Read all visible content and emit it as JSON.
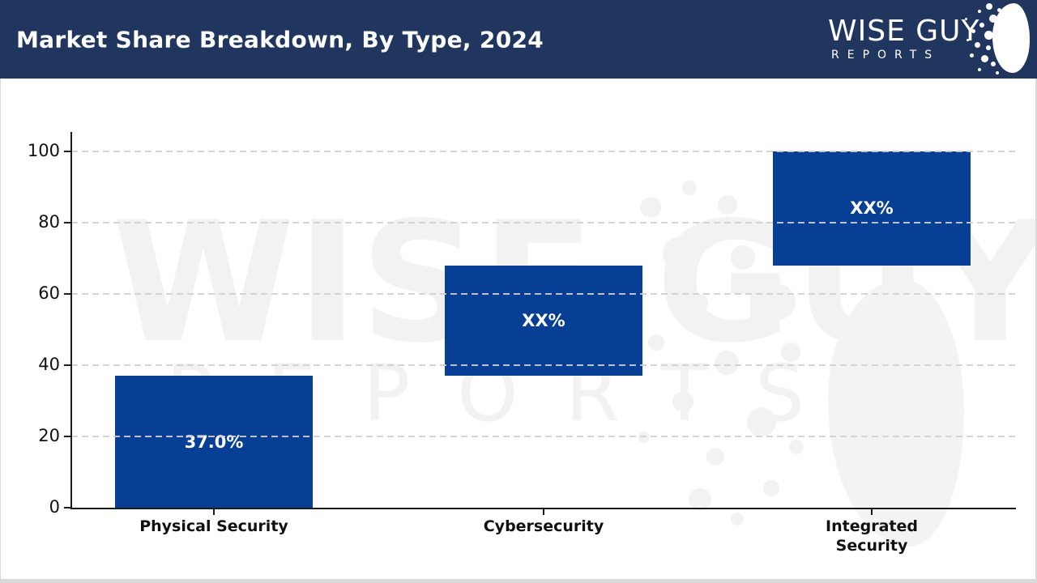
{
  "header": {
    "title": "Market Share Breakdown, By Type, 2024",
    "logo": {
      "line1": "WISE GUY",
      "line2": "REPORTS"
    }
  },
  "watermark": {
    "line1": "WISE GUY",
    "line2": "REPORTS"
  },
  "chart_data": {
    "type": "bar",
    "subtype": "floating-waterfall",
    "title": "Market Share Breakdown, By Type, 2024",
    "categories": [
      "Physical Security",
      "Cybersecurity",
      "Integrated\nSecurity"
    ],
    "segments": [
      {
        "category": "Physical Security",
        "start": 0,
        "end": 37,
        "label": "37.0%"
      },
      {
        "category": "Cybersecurity",
        "start": 37,
        "end": 68,
        "label": "XX%"
      },
      {
        "category": "Integrated Security",
        "start": 68,
        "end": 100,
        "label": "XX%"
      }
    ],
    "xlabel": "",
    "ylabel": "",
    "ylim": [
      0,
      100
    ],
    "yticks": [
      0,
      20,
      40,
      60,
      80,
      100
    ],
    "grid": "horizontal-dashed-over-bars",
    "legend": "none",
    "bar_color": "#063f94",
    "bar_label_color": "#ffffff",
    "header_color": "#21365f"
  }
}
